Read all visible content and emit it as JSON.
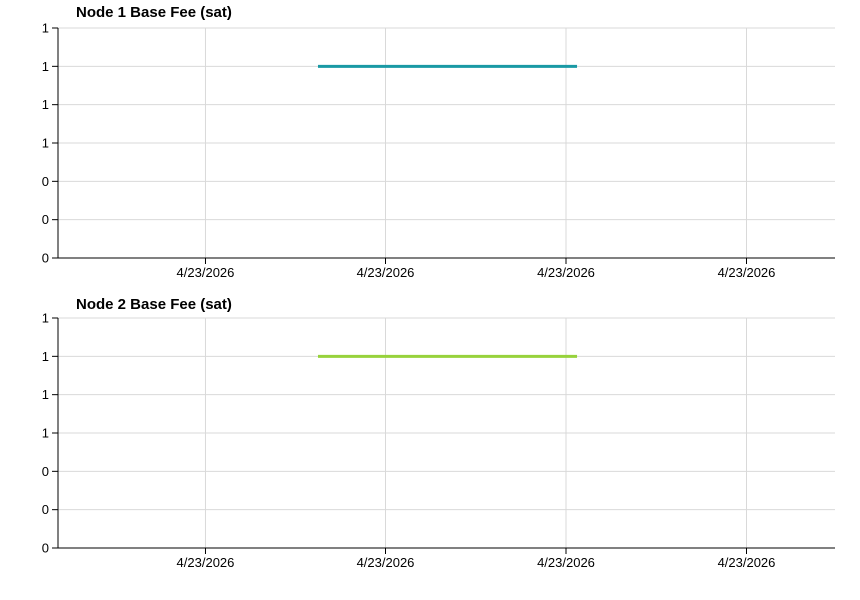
{
  "page": {
    "background_color": "#ffffff",
    "grid_color": "#d9d9d9",
    "axis_color": "#000000",
    "label_color": "#000000"
  },
  "chart_data": [
    {
      "type": "line",
      "title": "Node 1 Base Fee (sat)",
      "x_tick_labels": [
        "4/23/2026",
        "4/23/2026",
        "4/23/2026",
        "4/23/2026"
      ],
      "y_tick_labels_top_to_bottom": [
        "1",
        "1",
        "1",
        "1",
        "0",
        "0",
        "0"
      ],
      "y_axis_implied_range": [
        0,
        1.2
      ],
      "grid": true,
      "legend": "none",
      "series": [
        {
          "name": "Node 1 base fee",
          "color": "#1a99a4",
          "constant_value": 1,
          "y_tick_index_from_top": 1,
          "x_extent_fraction": [
            0.3346,
            0.668
          ]
        }
      ]
    },
    {
      "type": "line",
      "title": "Node 2 Base Fee (sat)",
      "x_tick_labels": [
        "4/23/2026",
        "4/23/2026",
        "4/23/2026",
        "4/23/2026"
      ],
      "y_tick_labels_top_to_bottom": [
        "1",
        "1",
        "1",
        "1",
        "0",
        "0",
        "0"
      ],
      "y_axis_implied_range": [
        0,
        1.2
      ],
      "grid": true,
      "legend": "none",
      "series": [
        {
          "name": "Node 2 base fee",
          "color": "#97d23c",
          "constant_value": 1,
          "y_tick_index_from_top": 1,
          "x_extent_fraction": [
            0.3346,
            0.668
          ]
        }
      ]
    }
  ]
}
